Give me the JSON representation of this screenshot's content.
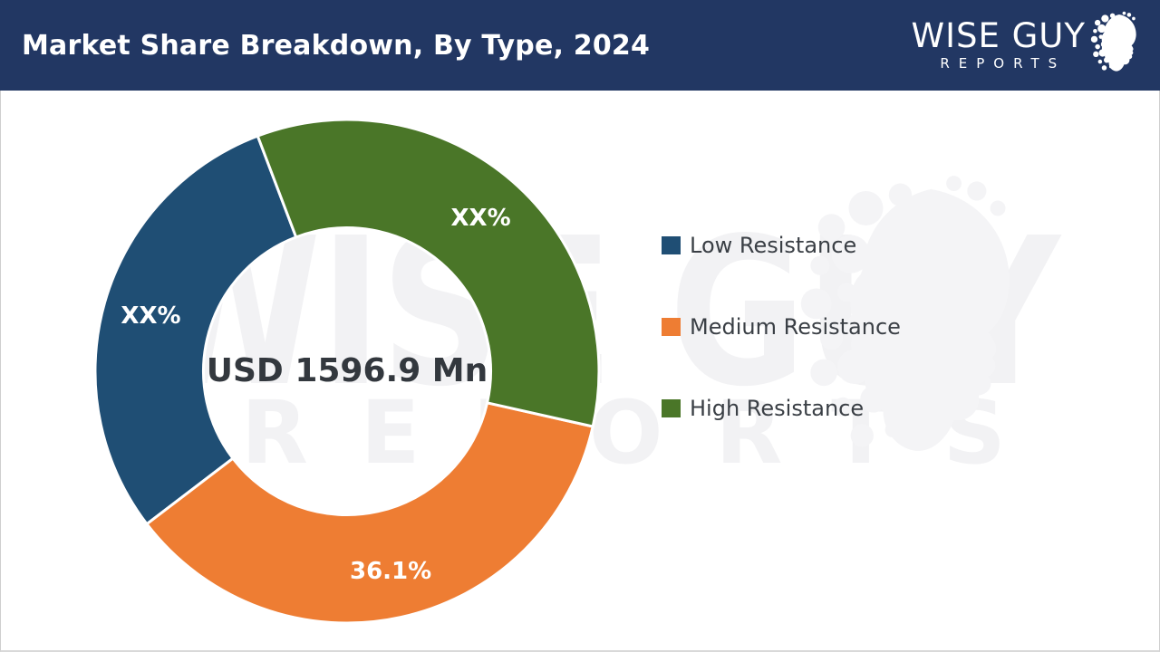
{
  "header": {
    "title": "Market Share Breakdown, By Type, 2024",
    "bg_color": "#223763",
    "logo": {
      "line1": "WISE GUY",
      "line2": "REPORTS"
    }
  },
  "watermark": {
    "line1": "WISE GUY",
    "line2": "REPORTS"
  },
  "chart_data": {
    "type": "pie",
    "subtype": "donut",
    "title": "Market Share Breakdown, By Type, 2024",
    "center_total": "USD 1596.9 Mn",
    "start_angle_deg": 110.8,
    "direction": "counterclockwise",
    "donut_hole_ratio": 0.57,
    "legend_position": "right",
    "slices": [
      {
        "name": "Low Resistance",
        "value_pct": 29.6,
        "display_label": "XX%",
        "color": "#1f4e74"
      },
      {
        "name": "Medium Resistance",
        "value_pct": 36.1,
        "display_label": "36.1%",
        "color": "#ee7d33"
      },
      {
        "name": "High Resistance",
        "value_pct": 34.3,
        "display_label": "XX%",
        "color": "#4a7628"
      }
    ]
  }
}
